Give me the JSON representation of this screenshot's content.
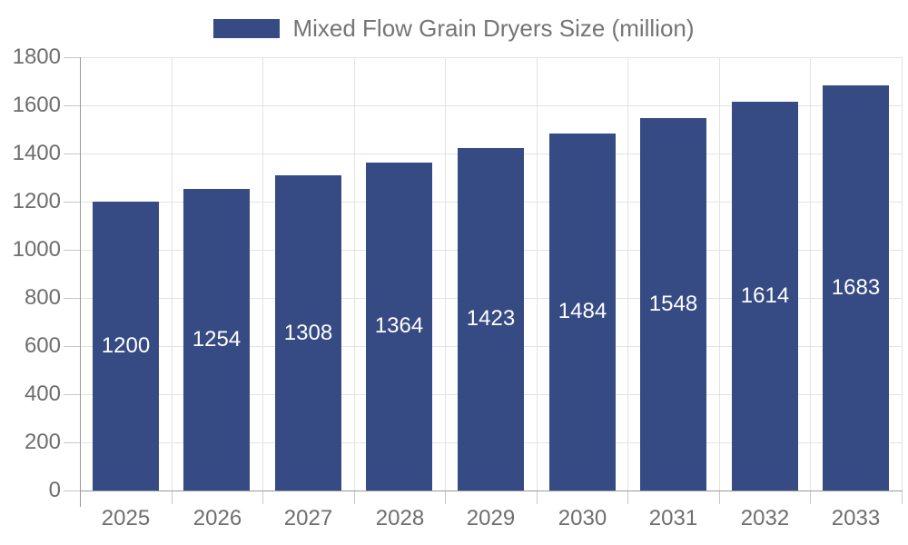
{
  "chart_data": {
    "type": "bar",
    "title": "Mixed Flow Grain Dryers Size (million)",
    "legend": [
      "Mixed Flow Grain Dryers Size (million)"
    ],
    "legend_position": "top-center",
    "categories": [
      "2025",
      "2026",
      "2027",
      "2028",
      "2029",
      "2030",
      "2031",
      "2032",
      "2033"
    ],
    "values": [
      1200,
      1254,
      1308,
      1364,
      1423,
      1484,
      1548,
      1614,
      1683
    ],
    "xlabel": "",
    "ylabel": "",
    "ylim": [
      0,
      1800
    ],
    "ytick_step": 200,
    "yticks": [
      0,
      200,
      400,
      600,
      800,
      1000,
      1200,
      1400,
      1600,
      1800
    ],
    "grid": true,
    "bar_color": "#364a84",
    "bar_label_color": "#ffffff",
    "axis_text_color": "#6e6e6e",
    "legend_text_color": "#757575",
    "gridline_color": "#e3e3e3",
    "axis_line_color": "#999999"
  }
}
